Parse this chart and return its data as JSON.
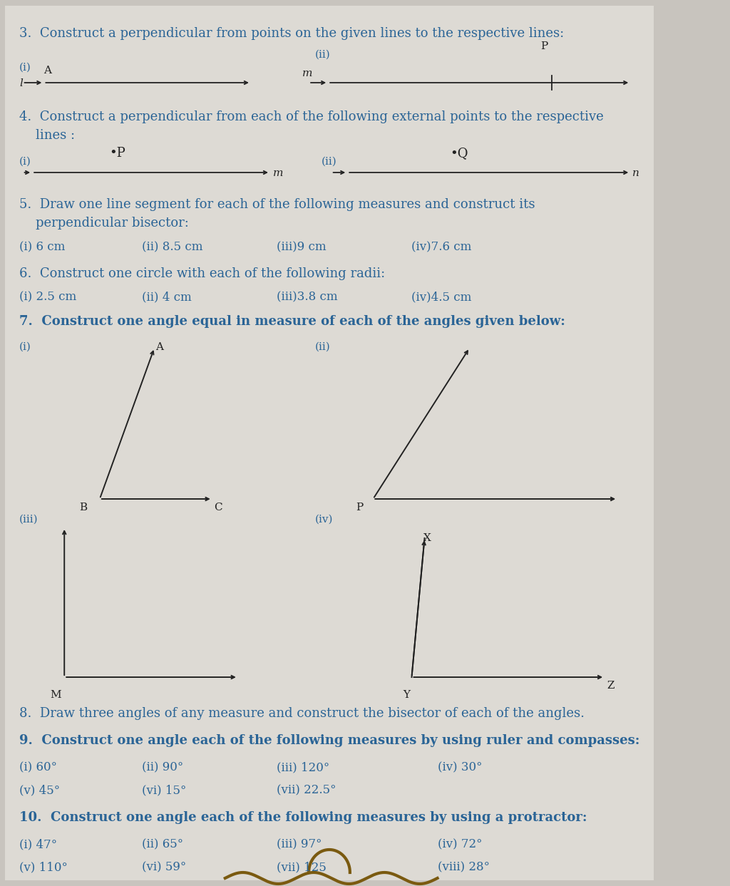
{
  "bg_color": "#c8c4be",
  "page_bg": "#dddad4",
  "text_color": "#2a6496",
  "line_color": "#222222",
  "q3_title": "3.  Construct a perpendicular from points on the given lines to the respective lines:",
  "q4_title_bold": "4.  Construct a perpendicular from each of the following external points to the respective",
  "q4_title2": "    lines :",
  "q5_title_bold": "5.  Draw one line segment for each of the following measures and construct its",
  "q5_title2": "    perpendicular bisector:",
  "q5_items": [
    "(i) 6 cm",
    "(ii) 8.5 cm",
    "(iii)9 cm",
    "(iv)7.6 cm"
  ],
  "q6_title": "6.  Construct one circle with each of the following radii:",
  "q6_items": [
    "(i) 2.5 cm",
    "(ii) 4 cm",
    "(iii)3.8 cm",
    "(iv)4.5 cm"
  ],
  "q7_title": "7.  Construct one angle equal in measure of each of the angles given below:",
  "q8_title": "8.  Draw three angles of any measure and construct the bisector of each of the angles.",
  "q9_title": "9.  Construct one angle each of the following measures by using ruler and compasses:",
  "q9_row1": [
    "(i) 60°",
    "(ii) 90°",
    "(iii) 120°",
    "(iv) 30°"
  ],
  "q9_row2": [
    "(v) 45°",
    "(vi) 15°",
    "(vii) 22.5°"
  ],
  "q10_title": "10.  Construct one angle each of the following measures by using a protractor:",
  "q10_row1": [
    "(i) 47°",
    "(ii) 65°",
    "(iii) 97°",
    "(iv) 72°"
  ],
  "q10_row2": [
    "(v) 110°",
    "(vi) 59°",
    "(vii) 125",
    "(viii) 28°"
  ]
}
